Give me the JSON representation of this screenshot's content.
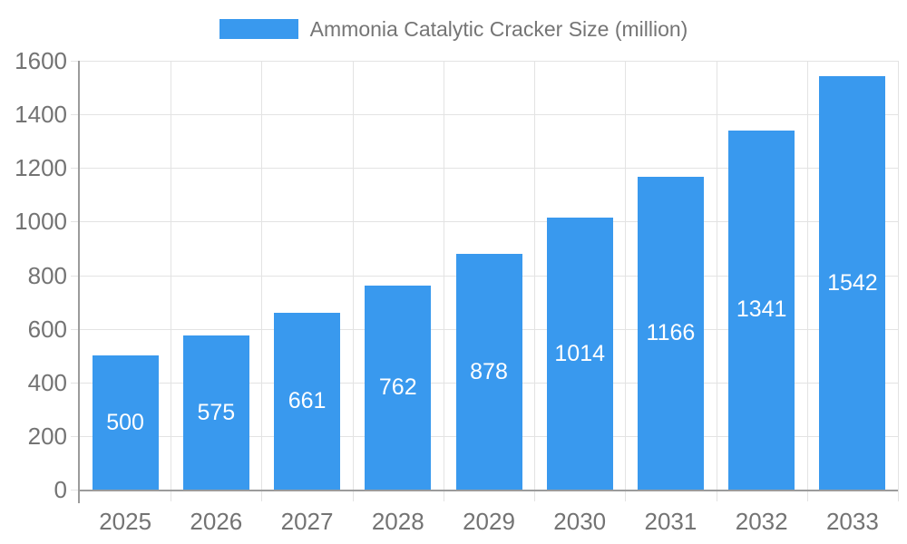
{
  "legend": {
    "label": "Ammonia Catalytic Cracker Size (million)"
  },
  "colors": {
    "bar": "#3999ee",
    "grid": "#e3e3e3",
    "axis": "#9b9b9b",
    "tick_text": "#737373",
    "legend_text": "#757575",
    "value_text": "#ffffff"
  },
  "chart_data": {
    "type": "bar",
    "title": "Ammonia Catalytic Cracker Size (million)",
    "categories": [
      "2025",
      "2026",
      "2027",
      "2028",
      "2029",
      "2030",
      "2031",
      "2032",
      "2033"
    ],
    "values": [
      500,
      575,
      661,
      762,
      878,
      1014,
      1166,
      1341,
      1542
    ],
    "xlabel": "",
    "ylabel": "",
    "ylim": [
      0,
      1600
    ],
    "yticks": [
      0,
      200,
      400,
      600,
      800,
      1000,
      1200,
      1400,
      1600
    ],
    "grid": true,
    "legend_position": "top-center",
    "value_labels": "inside-center"
  }
}
